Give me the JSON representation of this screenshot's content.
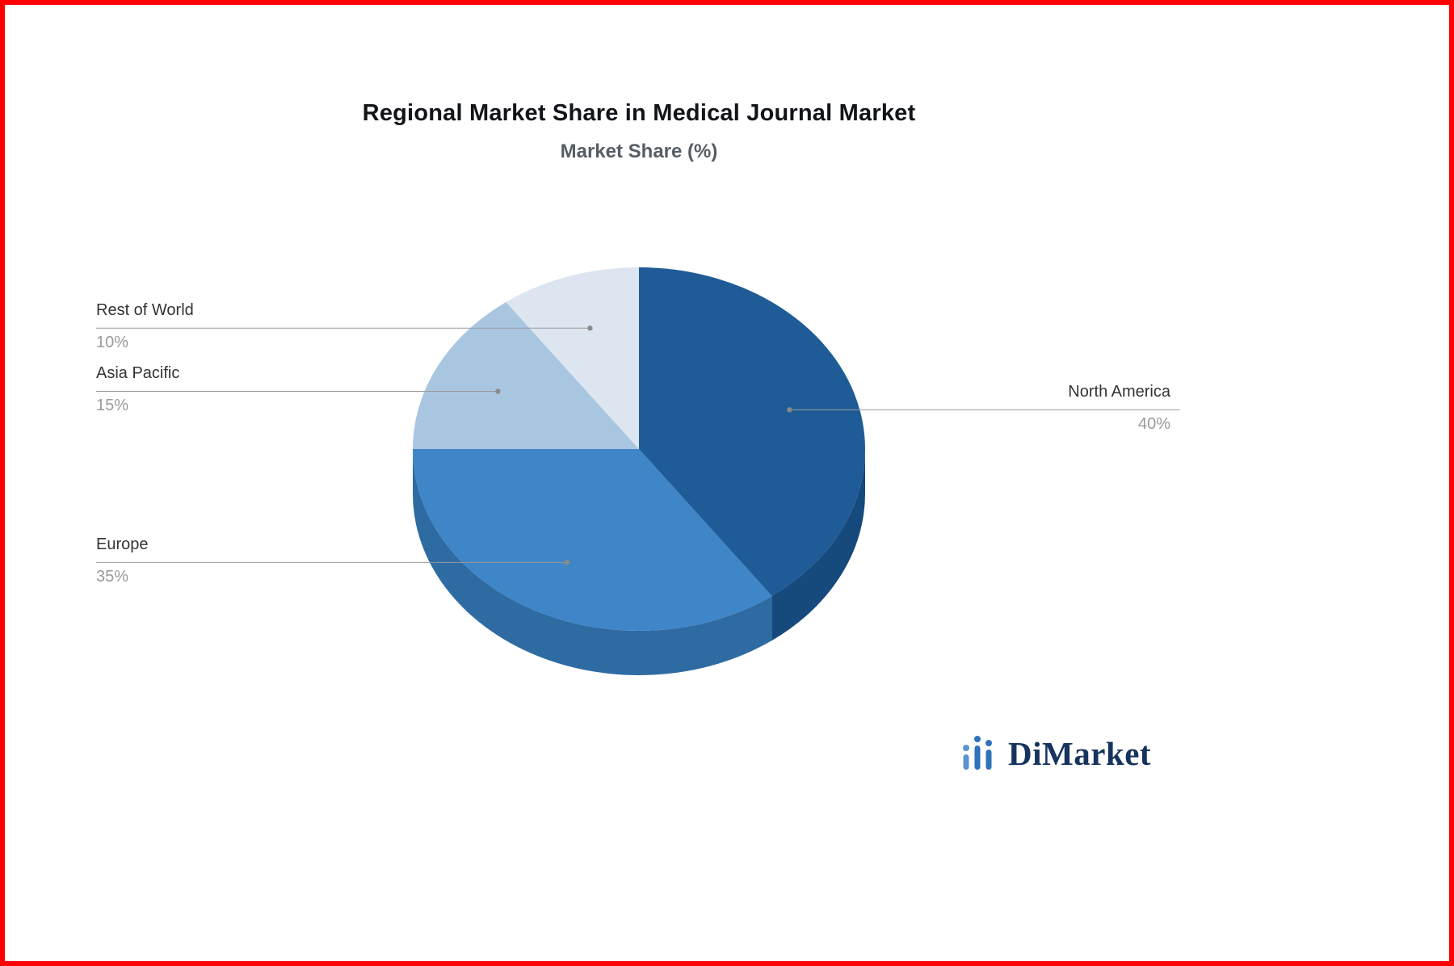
{
  "header": {
    "title": "Regional Market Share in Medical Journal Market",
    "subtitle": "Market Share (%)"
  },
  "chart_data": {
    "type": "pie",
    "style": "3d",
    "title": "Regional Market Share in Medical Journal Market",
    "subtitle": "Market Share (%)",
    "unit": "%",
    "start_angle_deg": -90,
    "direction": "clockwise",
    "legend_position": "none",
    "slices": [
      {
        "label": "North America",
        "value": 40,
        "display": "40%",
        "color": "#1f5c97",
        "side_color": "#16497c",
        "label_side": "right"
      },
      {
        "label": "Europe",
        "value": 35,
        "display": "35%",
        "color": "#3e86c7",
        "side_color": "#2f6ba3",
        "label_side": "left"
      },
      {
        "label": "Asia Pacific",
        "value": 15,
        "display": "15%",
        "color": "#a9c6e1",
        "side_color": "#8fb4d6",
        "label_side": "left"
      },
      {
        "label": "Rest of World",
        "value": 10,
        "display": "10%",
        "color": "#dce5f0",
        "side_color": "#c4d3e6",
        "label_side": "left"
      }
    ],
    "leader_line_color": "#999999",
    "anchor_dot_color": "#8a8a8a"
  },
  "logo": {
    "text": "DiMarket",
    "icon": "bar-chart-dots-icon",
    "text_color": "#17345f",
    "accent_color": "#2e72ba"
  },
  "frame": {
    "border_color": "#fe0000"
  }
}
